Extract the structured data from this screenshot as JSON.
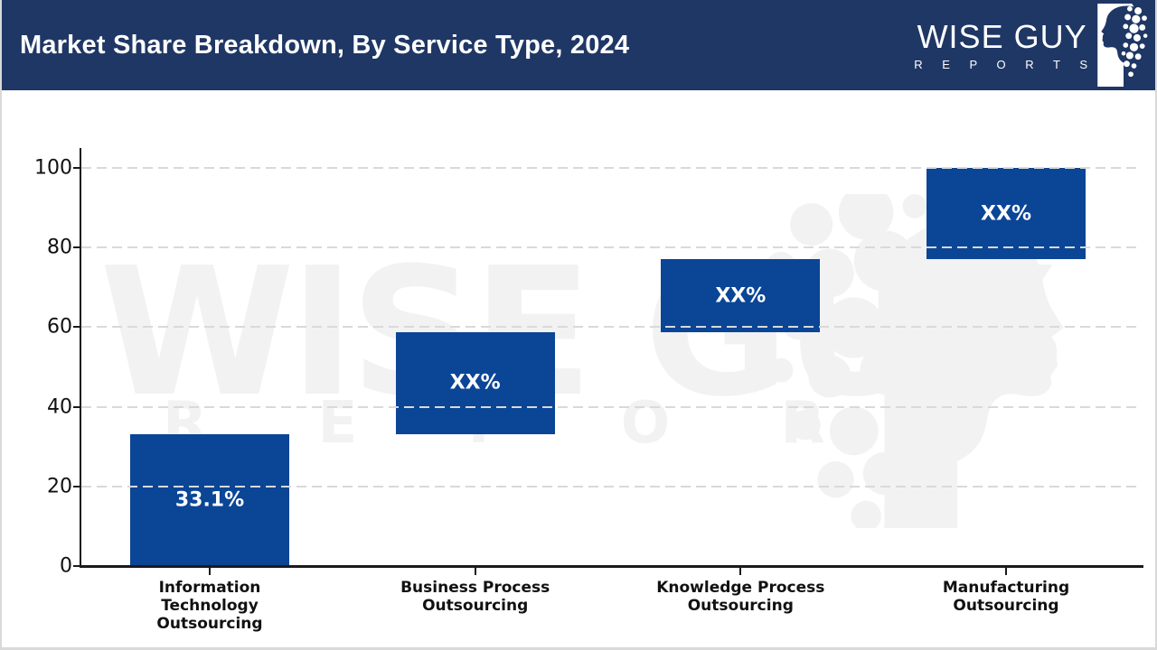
{
  "header": {
    "title": "Market Share Breakdown, By Service Type, 2024",
    "logo": {
      "name_top": "WISE GUY",
      "name_bottom": "R E P O R T S",
      "icon": "dotted-head-profile-icon"
    }
  },
  "watermark": {
    "text_top": "WISE GUY",
    "text_bottom": "R E P O R T S",
    "icon": "dotted-head-profile-watermark",
    "color": "#f2f2f2"
  },
  "colors": {
    "header_bg": "#1f3765",
    "bar": "#0b4596",
    "bar_label": "#ffffff",
    "grid": "#d9d9d9",
    "axis": "#1a1a1a"
  },
  "chart_data": {
    "type": "bar",
    "variant": "waterfall",
    "title": "Market Share Breakdown, By Service Type, 2024",
    "categories": [
      "Information\nTechnology\nOutsourcing",
      "Business Process\nOutsourcing",
      "Knowledge Process\nOutsourcing",
      "Manufacturing\nOutsourcing"
    ],
    "segments": [
      {
        "category": "Information Technology Outsourcing",
        "start": 0,
        "end": 33.1,
        "label": "33.1%"
      },
      {
        "category": "Business Process Outsourcing",
        "start": 33.1,
        "end": 58.8,
        "label": "XX%"
      },
      {
        "category": "Knowledge Process Outsourcing",
        "start": 58.8,
        "end": 77.0,
        "label": "XX%"
      },
      {
        "category": "Manufacturing Outsourcing",
        "start": 77.0,
        "end": 100.0,
        "label": "XX%"
      }
    ],
    "xlabel": "",
    "ylabel": "",
    "ylim": [
      0,
      100
    ],
    "yticks": [
      0,
      20,
      40,
      60,
      80,
      100
    ],
    "grid": "horizontal-dashed",
    "legend": "none"
  }
}
